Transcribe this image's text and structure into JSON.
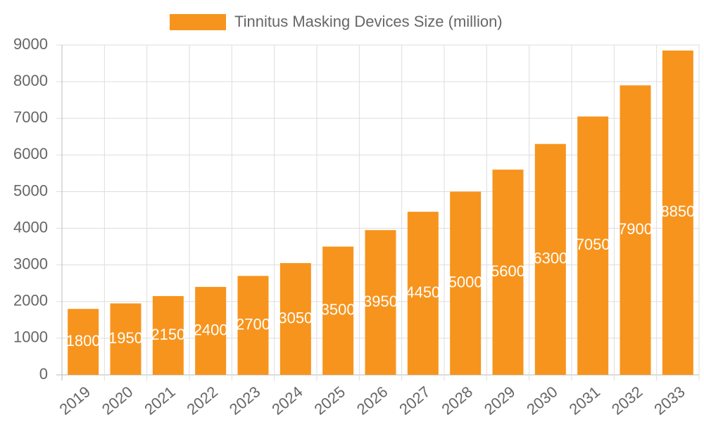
{
  "chart_data": {
    "type": "bar",
    "categories": [
      "2019",
      "2020",
      "2021",
      "2022",
      "2023",
      "2024",
      "2025",
      "2026",
      "2027",
      "2028",
      "2029",
      "2030",
      "2031",
      "2032",
      "2033"
    ],
    "series": [
      {
        "name": "Tinnitus Masking Devices Size (million)",
        "color": "#f7941d",
        "values": [
          1800,
          1950,
          2150,
          2400,
          2700,
          3050,
          3500,
          3950,
          4450,
          5000,
          5600,
          6300,
          7050,
          7900,
          8850
        ]
      }
    ],
    "ylim": [
      0,
      9000
    ],
    "yticks": [
      0,
      1000,
      2000,
      3000,
      4000,
      5000,
      6000,
      7000,
      8000,
      9000
    ],
    "grid": true,
    "legend": "top"
  }
}
